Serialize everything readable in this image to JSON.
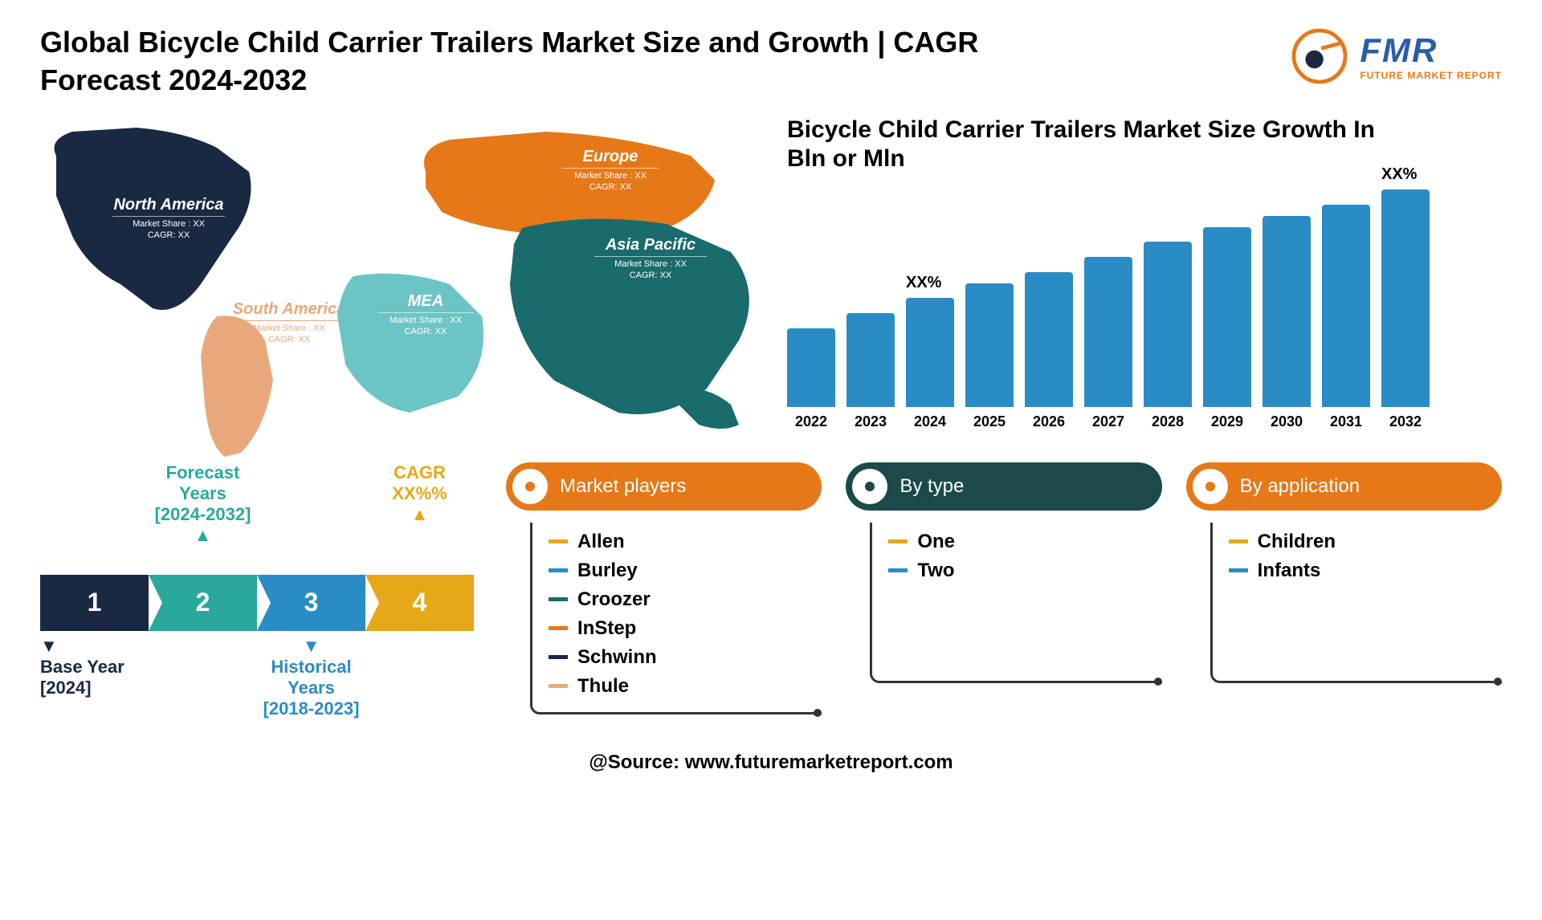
{
  "title": "Global Bicycle Child Carrier Trailers  Market Size and Growth | CAGR Forecast 2024-2032",
  "logo": {
    "fmr": "FMR",
    "sub": "FUTURE MARKET REPORT"
  },
  "map": {
    "regions": {
      "north_america": {
        "name": "North America",
        "share": "Market Share : XX",
        "cagr": "CAGR: XX",
        "color": "#1a2942"
      },
      "south_america": {
        "name": "South America",
        "share": "Market Share : XX",
        "cagr": "CAGR: XX",
        "color": "#e8a87c"
      },
      "europe": {
        "name": "Europe",
        "share": "Market Share : XX",
        "cagr": "CAGR: XX",
        "color": "#e67817"
      },
      "mea": {
        "name": "MEA",
        "share": "Market Share : XX",
        "cagr": "CAGR: XX",
        "color": "#6cc5c5"
      },
      "asia_pacific": {
        "name": "Asia Pacific",
        "share": "Market Share : XX",
        "cagr": "CAGR: XX",
        "color": "#1a6b6b"
      }
    }
  },
  "chart": {
    "title": "Bicycle Child Carrier Trailers Market Size Growth In\nBln or Mln",
    "type": "bar",
    "years": [
      "2022",
      "2023",
      "2024",
      "2025",
      "2026",
      "2027",
      "2028",
      "2029",
      "2030",
      "2031",
      "2032"
    ],
    "values": [
      105,
      125,
      145,
      165,
      180,
      200,
      220,
      240,
      255,
      270,
      290
    ],
    "max": 300,
    "bar_color": "#2a8cc4",
    "annotations": {
      "2024": "XX%",
      "2032": "XX%"
    }
  },
  "timeline": {
    "forecast": {
      "label": "Forecast Years",
      "range": "[2024-2032]"
    },
    "cagr": {
      "label": "CAGR",
      "value": "XX%%"
    },
    "base": {
      "label": "Base Year",
      "range": "[2024]"
    },
    "historical": {
      "label": "Historical Years",
      "range": "[2018-2023]"
    },
    "segments": [
      "1",
      "2",
      "3",
      "4"
    ],
    "seg_colors": [
      "#1a2942",
      "#2aa89c",
      "#2a8cc4",
      "#e6a817"
    ]
  },
  "categories": {
    "players": {
      "title": "Market players",
      "bg": "#e67817",
      "items": [
        {
          "label": "Allen",
          "color": "#e6a817"
        },
        {
          "label": "Burley",
          "color": "#2a8cc4"
        },
        {
          "label": "Croozer",
          "color": "#1a6b6b"
        },
        {
          "label": "InStep",
          "color": "#e67817"
        },
        {
          "label": "Schwinn",
          "color": "#1a2942"
        },
        {
          "label": "Thule",
          "color": "#e8a87c"
        }
      ]
    },
    "type": {
      "title": "By type",
      "bg": "#1a4a4a",
      "items": [
        {
          "label": "One",
          "color": "#e6a817"
        },
        {
          "label": "Two",
          "color": "#2a8cc4"
        }
      ]
    },
    "application": {
      "title": "By application",
      "bg": "#e67817",
      "items": [
        {
          "label": "Children",
          "color": "#e6a817"
        },
        {
          "label": "Infants",
          "color": "#2a8cc4"
        }
      ]
    }
  },
  "source": "@Source: www.futuremarketreport.com"
}
